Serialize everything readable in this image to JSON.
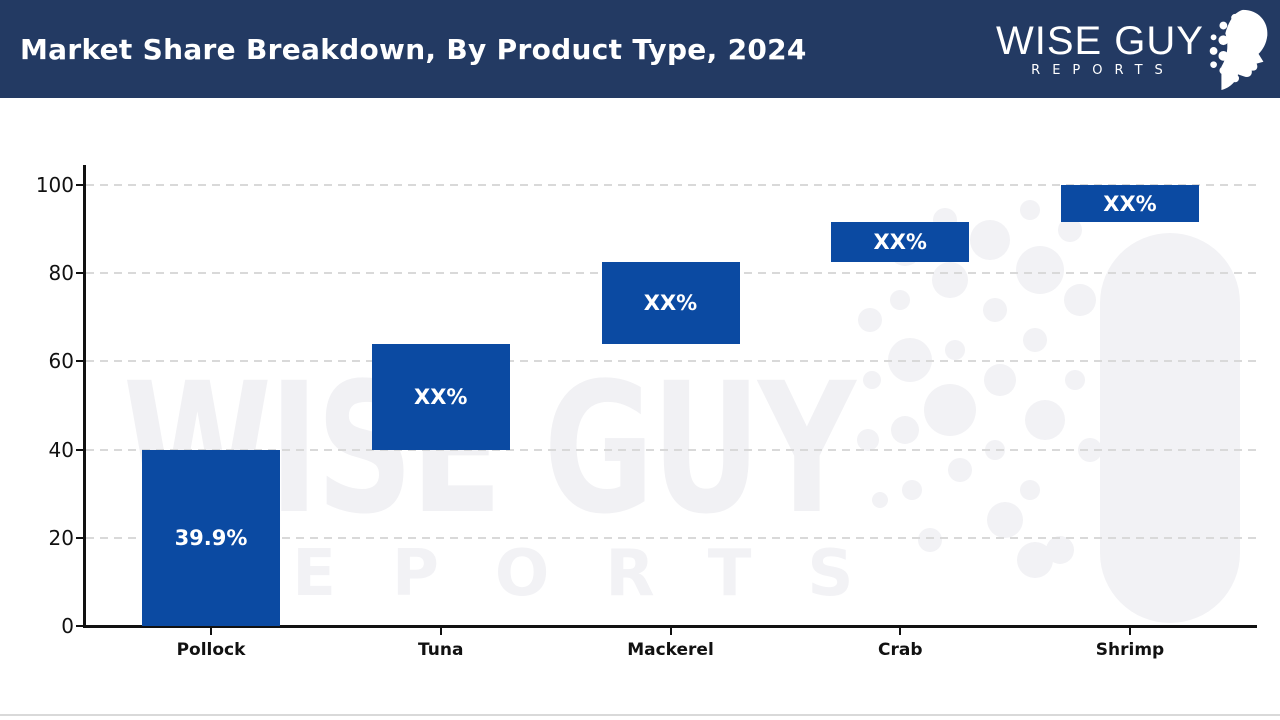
{
  "header": {
    "title": "Market Share Breakdown, By Product Type, 2024",
    "logo": {
      "primary": "WISE GUY",
      "secondary": "REPORTS"
    }
  },
  "watermark": {
    "primary": "WISE GUY",
    "secondary": "REPORTS"
  },
  "chart_data": {
    "type": "bar",
    "variant": "waterfall",
    "title": "Market Share Breakdown, By Product Type, 2024",
    "categories": [
      "Pollock",
      "Tuna",
      "Mackerel",
      "Crab",
      "Shrimp"
    ],
    "segments": [
      {
        "category": "Pollock",
        "start": 0,
        "end": 39.9,
        "label": "39.9%"
      },
      {
        "category": "Tuna",
        "start": 39.9,
        "end": 64,
        "label": "XX%"
      },
      {
        "category": "Mackerel",
        "start": 64,
        "end": 82.5,
        "label": "XX%"
      },
      {
        "category": "Crab",
        "start": 82.5,
        "end": 91.5,
        "label": "XX%"
      },
      {
        "category": "Shrimp",
        "start": 91.5,
        "end": 100,
        "label": "XX%"
      }
    ],
    "y_ticks": [
      0,
      20,
      40,
      60,
      80,
      100
    ],
    "ylim": [
      0,
      105
    ],
    "xlabel": "",
    "ylabel": "",
    "grid": "horizontal-dashed",
    "legend": "none",
    "bar_color": "#0b4aa2",
    "bar_label_color": "#ffffff"
  },
  "colors": {
    "header_bg": "#233a63",
    "bar": "#0b4aa2",
    "grid": "#d9d9d9",
    "axis": "#111111",
    "watermark": "#f1f1f4",
    "footer_rule": "#d9d9d9"
  }
}
